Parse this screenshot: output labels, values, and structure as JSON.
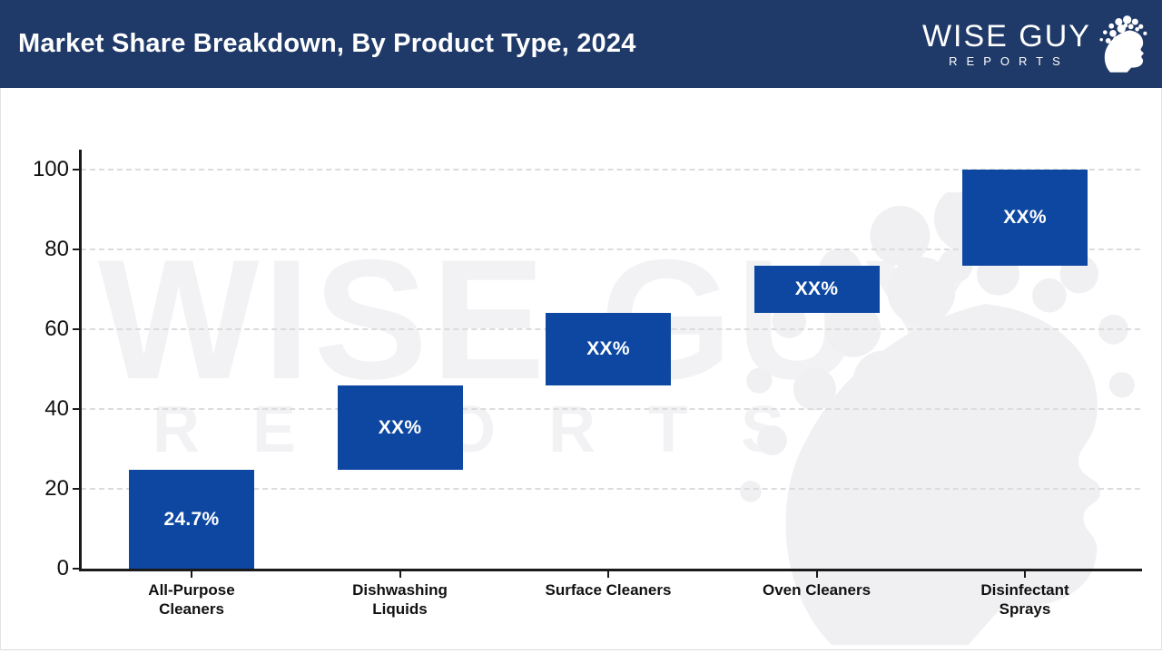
{
  "header": {
    "title": "Market Share Breakdown, By Product Type, 2024",
    "bg_color": "#1f3a68",
    "logo": {
      "line1": "WISE GUY",
      "line2": "REPORTS"
    }
  },
  "watermark": {
    "line1": "WISE GUY",
    "line2": "REPORTS",
    "color": "#f2f2f5"
  },
  "chart_data": {
    "type": "bar",
    "variant": "waterfall-floating-bars",
    "title": "Market Share Breakdown, By Product Type, 2024",
    "xlabel": "",
    "ylabel": "",
    "ylim": [
      0,
      100
    ],
    "yticks": [
      0,
      20,
      40,
      60,
      80,
      100
    ],
    "grid": "horizontal-dashed",
    "legend": "none",
    "bar_color": "#0d47a1",
    "categories": [
      [
        "All-Purpose",
        "Cleaners"
      ],
      [
        "Dishwashing",
        "Liquids"
      ],
      [
        "Surface Cleaners"
      ],
      [
        "Oven Cleaners"
      ],
      [
        "Disinfectant",
        "Sprays"
      ]
    ],
    "segments": [
      {
        "category": "All-Purpose Cleaners",
        "start": 0,
        "end": 24.7,
        "label": "24.7%"
      },
      {
        "category": "Dishwashing Liquids",
        "start": 24.7,
        "end": 45.9,
        "label": "XX%"
      },
      {
        "category": "Surface Cleaners",
        "start": 45.9,
        "end": 64.1,
        "label": "XX%"
      },
      {
        "category": "Oven Cleaners",
        "start": 64.1,
        "end": 75.9,
        "label": "XX%"
      },
      {
        "category": "Disinfectant Sprays",
        "start": 75.9,
        "end": 100,
        "label": "XX%"
      }
    ]
  }
}
